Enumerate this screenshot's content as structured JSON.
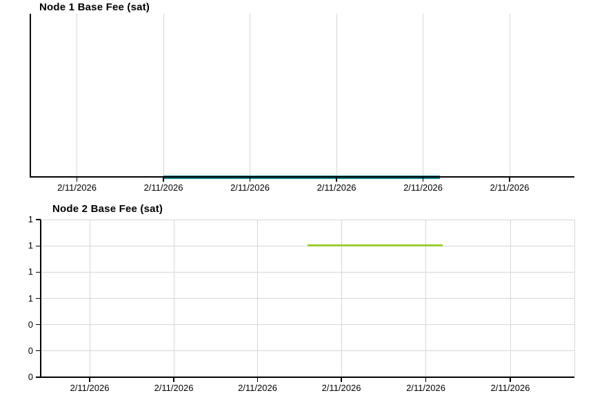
{
  "page": {
    "background": "#ffffff"
  },
  "colors": {
    "node1_line": "#0d828a",
    "node2_line": "#9acd32",
    "axis": "#000000",
    "grid": "#d6d6d6",
    "label_text": "#000000"
  },
  "charts": [
    {
      "title": "Node 1 Base Fee (sat)",
      "x_labels": [
        "2/11/2026",
        "2/11/2026",
        "2/11/2026",
        "2/11/2026",
        "2/11/2026",
        "2/11/2026"
      ],
      "y_labels": []
    },
    {
      "title": "Node 2 Base Fee (sat)",
      "x_labels": [
        "2/11/2026",
        "2/11/2026",
        "2/11/2026",
        "2/11/2026",
        "2/11/2026",
        "2/11/2026"
      ],
      "y_labels": [
        "1",
        "1",
        "1",
        "1",
        "0",
        "0",
        "0"
      ]
    }
  ],
  "chart_data": [
    {
      "type": "line",
      "title": "Node 1 Base Fee (sat)",
      "xlabel": "",
      "ylabel": "",
      "x_tick_labels": [
        "2/11/2026",
        "2/11/2026",
        "2/11/2026",
        "2/11/2026",
        "2/11/2026",
        "2/11/2026"
      ],
      "y_tick_labels": [],
      "grid": "vertical-only",
      "legend_position": "none",
      "series": [
        {
          "name": "Node 1 base fee",
          "unit": "sat",
          "constant_value": 0,
          "x_span_fraction_of_plot": [
            0.245,
            0.753
          ],
          "color": "#0d828a",
          "note": "flat line at 0 drawn along the x-axis baseline"
        }
      ]
    },
    {
      "type": "line",
      "title": "Node 2 Base Fee (sat)",
      "xlabel": "",
      "ylabel": "",
      "x_tick_labels": [
        "2/11/2026",
        "2/11/2026",
        "2/11/2026",
        "2/11/2026",
        "2/11/2026",
        "2/11/2026"
      ],
      "y_tick_labels": [
        "1",
        "1",
        "1",
        "1",
        "0",
        "0",
        "0"
      ],
      "ylim_estimated": [
        0,
        1.2
      ],
      "y_tick_values_estimated": [
        1.2,
        1.0,
        0.8,
        0.6,
        0.4,
        0.2,
        0
      ],
      "grid": "horizontal-and-vertical",
      "legend_position": "none",
      "series": [
        {
          "name": "Node 2 base fee",
          "unit": "sat",
          "constant_value": 1,
          "x_span_fraction_of_plot": [
            0.5,
            0.753
          ],
          "color": "#9acd32",
          "note": "flat line at value 1 (second tick from top)"
        }
      ]
    }
  ]
}
